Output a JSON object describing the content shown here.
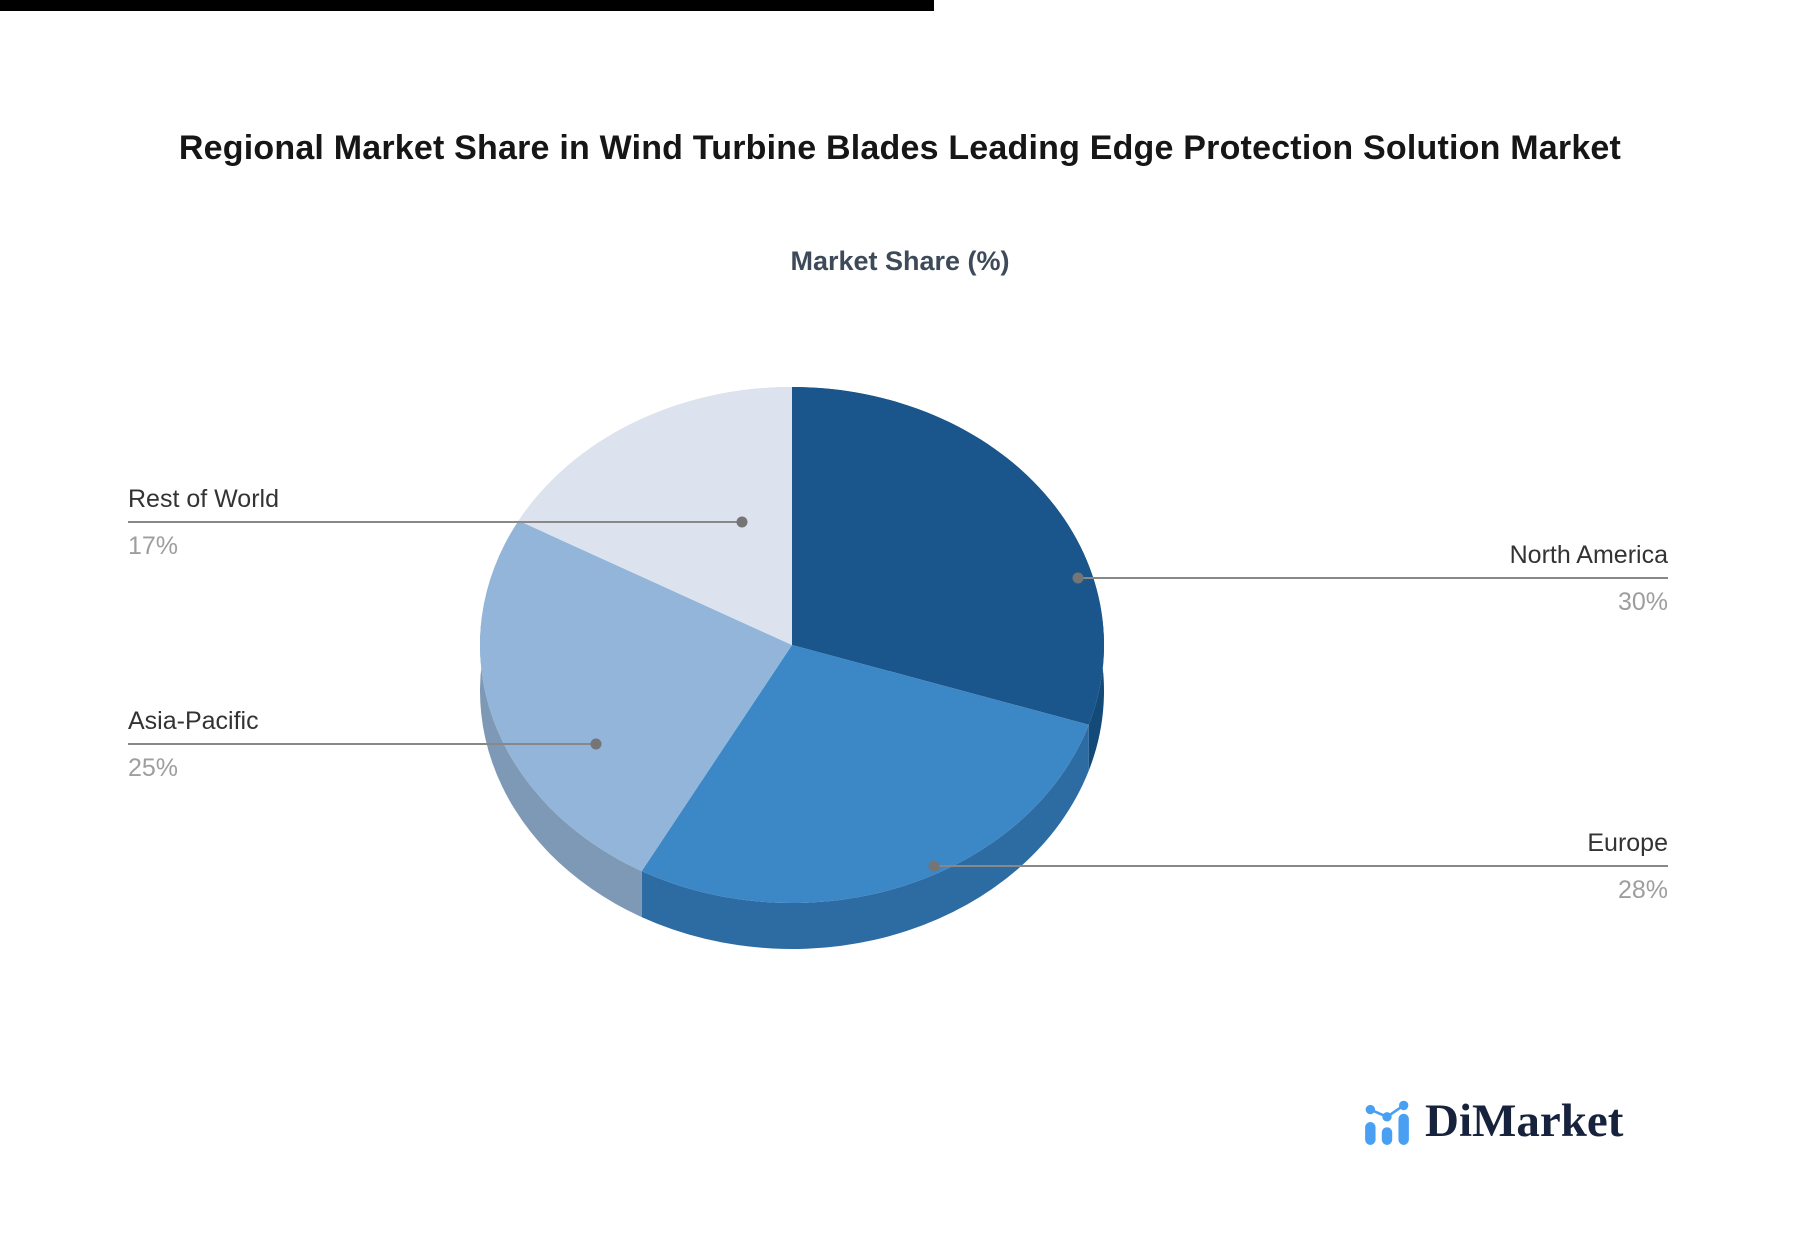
{
  "top_bar": {
    "visible": true,
    "color": "#000000"
  },
  "chart_data": {
    "type": "pie",
    "title": "Regional Market Share in Wind Turbine Blades Leading Edge Protection Solution Market",
    "subtitle": "Market Share (%)",
    "total": 100,
    "unit": "%",
    "direction": "clockwise",
    "start_angle_deg": 0,
    "effect_3d": true,
    "legend": "none",
    "slices": [
      {
        "label": "North America",
        "value": 30,
        "pct_label": "30%",
        "color": "#1A568C",
        "side_color": "#134A78"
      },
      {
        "label": "Europe",
        "value": 28,
        "pct_label": "28%",
        "color": "#3C87C6",
        "side_color": "#2D6CA3"
      },
      {
        "label": "Asia-Pacific",
        "value": 25,
        "pct_label": "25%",
        "color": "#92B5D9",
        "side_color": "#7E99B6"
      },
      {
        "label": "Rest of World",
        "value": 17,
        "pct_label": "17%",
        "color": "#DCE3EE",
        "side_color": "#B8C3D6"
      }
    ],
    "style": {
      "title_color": "#161616",
      "subtitle_color": "#3E4A59",
      "label_color": "#333333",
      "pct_color": "#9E9E9E",
      "leader_line_color": "#888888",
      "leader_dot_color": "#757575",
      "background": "#FFFFFF"
    }
  },
  "logo": {
    "text": "DiMarket",
    "icon": "bar-chart-logo-icon",
    "text_color": "#17233D",
    "icon_color": "#49A0F3"
  }
}
